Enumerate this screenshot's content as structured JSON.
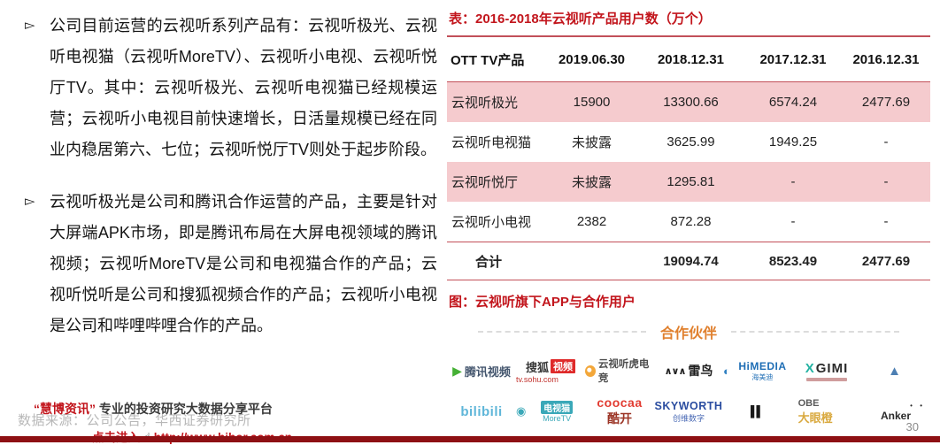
{
  "colors": {
    "accent_red": "#c2151c",
    "table_line_red": "#c25059",
    "row_highlight_pink": "#f5cbce",
    "partners_orange": "#e0802e",
    "bottom_bar_dark_red": "#8e1014"
  },
  "left_panel": {
    "bullets": [
      {
        "marker": "▻",
        "text": "公司目前运营的云视听系列产品有：云视听极光、云视听电视猫（云视听MoreTV）、云视听小电视、云视听悦厅TV。其中：云视听极光、云视听电视猫已经规模运营；云视听小电视目前快速增长，日活量规模已经在同业内稳居第六、七位；云视听悦厅TV则处于起步阶段。"
      },
      {
        "marker": "▻",
        "text": "云视听极光是公司和腾讯合作运营的产品，主要是针对大屏端APK市场，即是腾讯布局在大屏电视领域的腾讯视频；云视听MoreTV是公司和电视猫合作的产品；云视听悦听是公司和搜狐视频合作的产品；云视听小电视是公司和哔哩哔哩合作的产品。"
      }
    ]
  },
  "table_section": {
    "title": "表：2016-2018年云视听产品用户数（万个）",
    "columns": [
      "OTT TV产品",
      "2019.06.30",
      "2018.12.31",
      "2017.12.31",
      "2016.12.31"
    ],
    "rows": [
      {
        "name": "云视听极光",
        "values": [
          "15900",
          "13300.66",
          "6574.24",
          "2477.69"
        ],
        "highlight": true
      },
      {
        "name": "云视听电视猫",
        "values": [
          "未披露",
          "3625.99",
          "1949.25",
          "-"
        ],
        "highlight": false
      },
      {
        "name": "云视听悦厅",
        "values": [
          "未披露",
          "1295.81",
          "-",
          "-"
        ],
        "highlight": true
      },
      {
        "name": "云视听小电视",
        "values": [
          "2382",
          "872.28",
          "-",
          "-"
        ],
        "highlight": false
      }
    ],
    "total_row": {
      "name": "合计",
      "values": [
        "",
        "19094.74",
        "8523.49",
        "2477.69"
      ]
    }
  },
  "figure_section": {
    "title": "图：云视听旗下APP与合作用户",
    "partners_label": "合作伙伴",
    "logos_row1": [
      {
        "id": "tencent-video",
        "cls": "lg-tencent",
        "icon": "▶",
        "text": "腾讯视频"
      },
      {
        "id": "sohu-video",
        "cls": "lg-sohu",
        "text": "搜狐",
        "text2": "视频",
        "sub": "tv.sohu.com"
      },
      {
        "id": "yunshiting-hu-esports",
        "cls": "lg-huya",
        "icon": "",
        "text": "云视听虎电竞"
      },
      {
        "id": "leiniao-ffalcon",
        "cls": "lg-leiniao",
        "icon": "∧∨∧",
        "text": "雷鸟"
      },
      {
        "id": "himedia",
        "cls": "lg-himedia",
        "icon": "◐",
        "text": "HiMEDIA",
        "sub": "海美迪"
      },
      {
        "id": "xgimi",
        "cls": "lg-xgimi",
        "text": "X",
        "text2": "GIMI",
        "bar": true
      },
      {
        "id": "triangle-brand",
        "cls": "lg-triangle",
        "icon": "▲",
        "bar": true
      }
    ],
    "logos_row2": [
      {
        "id": "bilibili",
        "cls": "lg-bili",
        "text": "bilibili"
      },
      {
        "id": "moretv",
        "cls": "lg-moretv",
        "icon": "◉",
        "text": "电视猫",
        "sub": "MoreTV"
      },
      {
        "id": "coocaa",
        "cls": "lg-coocaa",
        "text": "coocaa",
        "text2": "酷开"
      },
      {
        "id": "skyworth",
        "cls": "lg-skyworth",
        "text": "SKYWORTH",
        "sub": "创维数字"
      },
      {
        "id": "h-brand",
        "cls": "lg-hbrand",
        "icon": "▌▌",
        "bar": true
      },
      {
        "id": "obe-dayancheng",
        "cls": "lg-obe",
        "text": "OBE",
        "sub": "大眼橙"
      },
      {
        "id": "anker",
        "cls": "lg-anker",
        "icon": "• •",
        "text": "Anker"
      }
    ]
  },
  "footer": {
    "watermark_brand": "“慧博资讯”",
    "watermark_tagline": "专业的投资研究大数据分享平台",
    "source": "数据来源：公司公告，华西证券研究所",
    "link_prefix": "点击进入",
    "hand_icon": "☝",
    "link_url": "http://www.hibor.com.cn",
    "page_number": "30"
  }
}
